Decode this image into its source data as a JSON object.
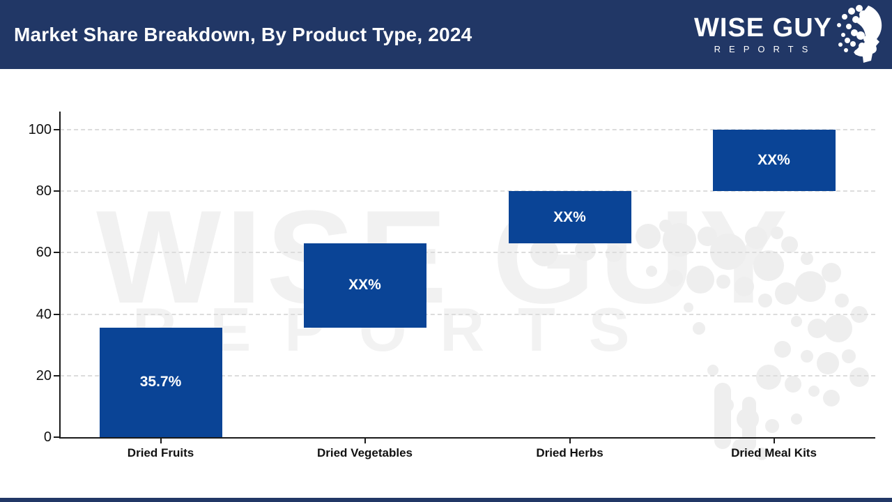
{
  "header": {
    "title": "Market Share Breakdown, By Product Type, 2024",
    "bg_color": "#213766",
    "logo": {
      "line1": "WISE GUY",
      "line2": "REPORTS"
    }
  },
  "watermark": {
    "line1": "WISE GUY",
    "line2": "REPORTS"
  },
  "chart_data": {
    "type": "bar",
    "subtype": "waterfall-floating-bars",
    "title": "Market Share Breakdown, By Product Type, 2024",
    "categories": [
      "Dried Fruits",
      "Dried Vegetables",
      "Dried Herbs",
      "Dried Meal Kits"
    ],
    "segments": [
      {
        "category": "Dried Fruits",
        "start": 0,
        "end": 35.7,
        "label": "35.7%"
      },
      {
        "category": "Dried Vegetables",
        "start": 35.7,
        "end": 63,
        "label": "XX%"
      },
      {
        "category": "Dried Herbs",
        "start": 63,
        "end": 80,
        "label": "XX%"
      },
      {
        "category": "Dried Meal Kits",
        "start": 80,
        "end": 100,
        "label": "XX%"
      }
    ],
    "xlabel": "",
    "ylabel": "",
    "ylim": [
      0,
      105
    ],
    "yticks": [
      0,
      20,
      40,
      60,
      80,
      100
    ],
    "grid": "horizontal-dashed",
    "legend": "none",
    "bar_color": "#0a4496",
    "bar_label_color": "#ffffff",
    "axis_color": "#1a1a1a",
    "grid_color": "#dcdcdc"
  }
}
